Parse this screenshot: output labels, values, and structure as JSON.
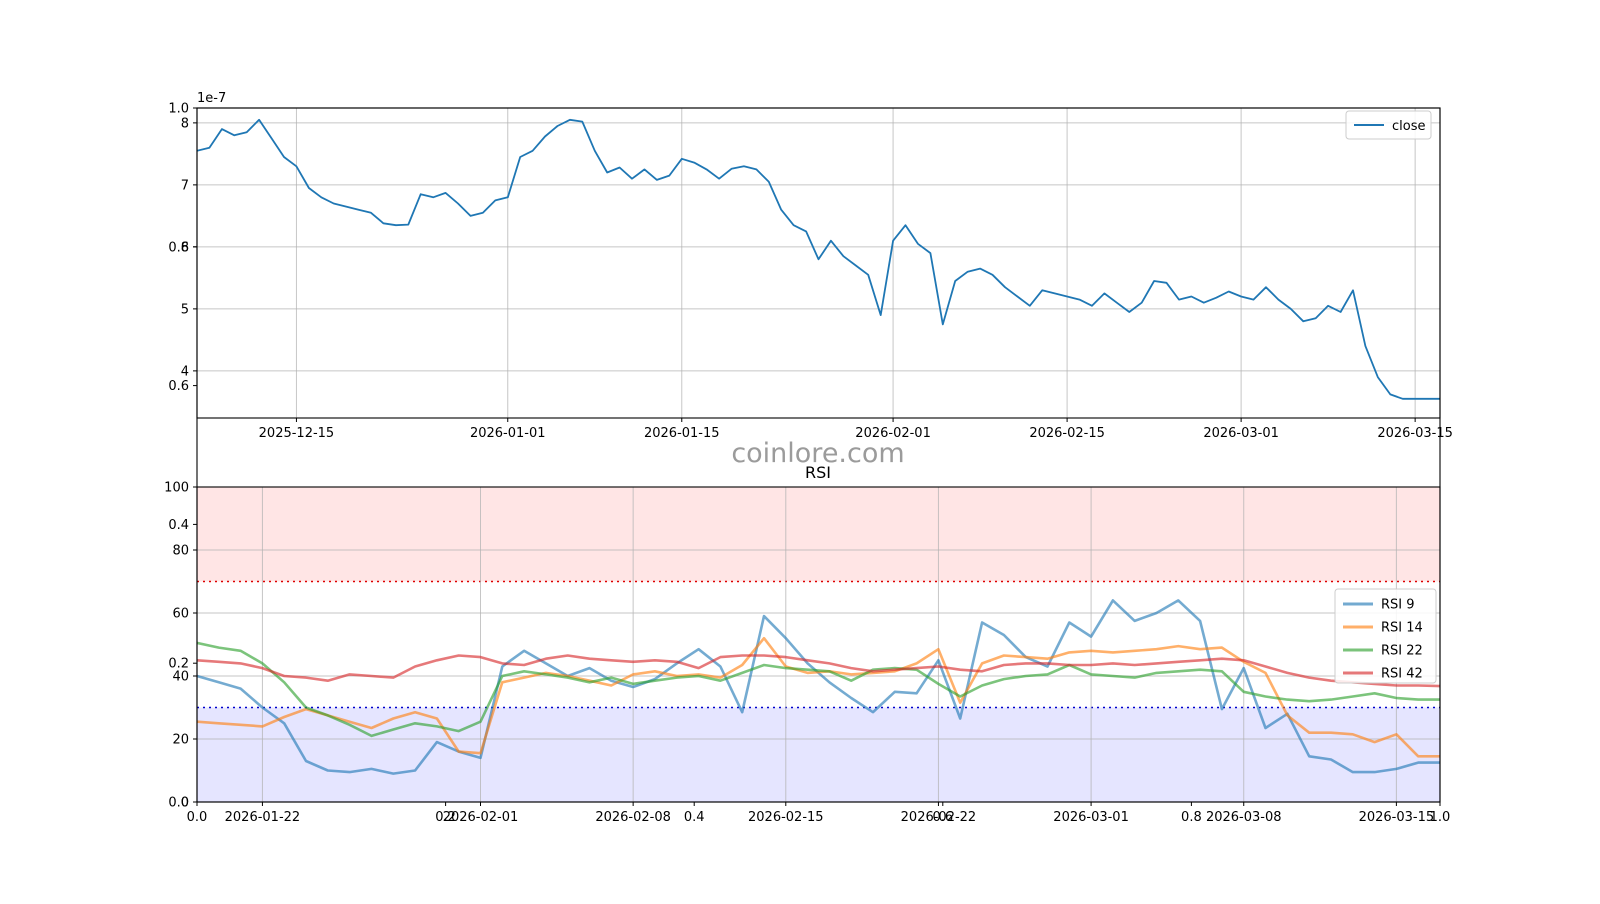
{
  "watermark": "coinlore.com",
  "colors": {
    "close": "#1f77b4",
    "rsi9": "#1f77b4",
    "rsi14": "#ff7f0e",
    "rsi22": "#2ca02c",
    "rsi42": "#d62728",
    "overbought_band": "rgba(255,0,0,0.10)",
    "oversold_band": "rgba(0,0,255,0.10)",
    "overbought_line": "#dd0000",
    "oversold_line": "#0000cc",
    "grid": "#b3b3b3",
    "spine": "#000000"
  },
  "overlay_axis": {
    "x_tick_labels": [
      "0.0",
      "0.2",
      "0.4",
      "0.6",
      "0.8",
      "1.0"
    ],
    "y_tick_labels": [
      "0.0",
      "0.2",
      "0.4",
      "0.6",
      "0.8",
      "1.0"
    ],
    "fractions": [
      0,
      0.2,
      0.4,
      0.6,
      0.8,
      1.0
    ]
  },
  "chart_data": [
    {
      "type": "line",
      "name": "close-price",
      "title": "",
      "offset_text": "1e-7",
      "legend": [
        "close"
      ],
      "legend_loc": "upper right",
      "grid": true,
      "ylim": [
        3.24,
        8.24
      ],
      "y_ticks": [
        4,
        5,
        6,
        7,
        8
      ],
      "y_tick_labels": [
        "4",
        "5",
        "6",
        "7",
        "8"
      ],
      "xlim": [
        "2025-12-07",
        "2026-03-17"
      ],
      "x_ticks": [
        "2025-12-15",
        "2026-01-01",
        "2026-01-15",
        "2026-02-01",
        "2026-02-15",
        "2026-03-01",
        "2026-03-15"
      ],
      "x_tick_labels": [
        "2025-12-15",
        "2026-01-01",
        "2026-01-15",
        "2026-02-01",
        "2026-02-15",
        "2026-03-01",
        "2026-03-15"
      ],
      "dates_start": "2025-12-07",
      "series": [
        {
          "name": "close",
          "values": [
            7.55,
            7.6,
            7.9,
            7.8,
            7.85,
            8.05,
            7.75,
            7.45,
            7.3,
            6.95,
            6.8,
            6.7,
            6.65,
            6.6,
            6.55,
            6.38,
            6.35,
            6.36,
            6.85,
            6.8,
            6.87,
            6.7,
            6.5,
            6.55,
            6.75,
            6.8,
            7.45,
            7.55,
            7.78,
            7.95,
            8.05,
            8.02,
            7.55,
            7.2,
            7.28,
            7.1,
            7.25,
            7.08,
            7.15,
            7.42,
            7.36,
            7.25,
            7.1,
            7.26,
            7.3,
            7.25,
            7.05,
            6.6,
            6.35,
            6.25,
            5.8,
            6.1,
            5.85,
            5.7,
            5.55,
            4.9,
            6.1,
            6.35,
            6.05,
            5.9,
            4.75,
            5.45,
            5.6,
            5.65,
            5.55,
            5.35,
            5.2,
            5.05,
            5.3,
            5.25,
            5.2,
            5.15,
            5.05,
            5.25,
            5.1,
            4.95,
            5.1,
            5.45,
            5.42,
            5.15,
            5.2,
            5.1,
            5.18,
            5.28,
            5.2,
            5.15,
            5.35,
            5.15,
            5.0,
            4.8,
            4.85,
            5.05,
            4.95,
            5.3,
            4.4,
            3.9,
            3.62,
            3.55,
            3.55,
            3.55,
            3.55
          ]
        }
      ]
    },
    {
      "type": "line",
      "name": "rsi",
      "title": "RSI",
      "legend": [
        "RSI 9",
        "RSI 14",
        "RSI 22",
        "RSI 42"
      ],
      "legend_loc": "right",
      "grid": true,
      "ylim": [
        0,
        100
      ],
      "y_ticks": [
        0,
        20,
        40,
        60,
        80,
        100
      ],
      "y_tick_labels": [
        "0",
        "20",
        "40",
        "60",
        "80",
        "100"
      ],
      "overbought_level": 70,
      "oversold_level": 30,
      "overbought_band": [
        70,
        100
      ],
      "oversold_band": [
        0,
        30
      ],
      "xlim": [
        "2026-01-19",
        "2026-03-17"
      ],
      "x_ticks": [
        "2026-01-22",
        "2026-02-01",
        "2026-02-08",
        "2026-02-15",
        "2026-02-22",
        "2026-03-01",
        "2026-03-08",
        "2026-03-15"
      ],
      "x_tick_labels": [
        "2026-01-22",
        "2026-02-01",
        "2026-02-08",
        "2026-02-15",
        "2026-02-22",
        "2026-03-01",
        "2026-03-08",
        "2026-03-15"
      ],
      "dates_start": "2026-01-19",
      "series": [
        {
          "name": "RSI 9",
          "color_key": "rsi9",
          "values": [
            40,
            38,
            36,
            30,
            25,
            13,
            10,
            9.5,
            10.5,
            9,
            10,
            19,
            16,
            14,
            43,
            48,
            44,
            40,
            42.5,
            38.5,
            36.5,
            39,
            44,
            48.5,
            43,
            28.5,
            59,
            52,
            44,
            38,
            33,
            28.5,
            35,
            34.5,
            45,
            26.5,
            57,
            53,
            46,
            43,
            57,
            52.5,
            64,
            57.5,
            60,
            64,
            57.5,
            29.5,
            42.5,
            23.5,
            28,
            14.5,
            13.5,
            9.5,
            9.5,
            10.5,
            12.5,
            12.5
          ]
        },
        {
          "name": "RSI 14",
          "color_key": "rsi14",
          "values": [
            25.5,
            25,
            24.5,
            24,
            27,
            29.5,
            27.5,
            25.5,
            23.5,
            26.5,
            28.5,
            26.5,
            16,
            15.5,
            38,
            39.5,
            41,
            40,
            38.5,
            37,
            40.5,
            41.5,
            40,
            40.5,
            39.5,
            43.5,
            52,
            43,
            41,
            41.5,
            40.5,
            41,
            41.5,
            44,
            48.5,
            31.5,
            44,
            46.5,
            46,
            45.5,
            47.5,
            48,
            47.5,
            48,
            48.5,
            49.5,
            48.5,
            49,
            44.5,
            41,
            27.5,
            22,
            22,
            21.5,
            19,
            21.5,
            14.5,
            14.5
          ]
        },
        {
          "name": "RSI 22",
          "color_key": "rsi22",
          "values": [
            50.5,
            49,
            48,
            44,
            38,
            30,
            27.5,
            24.5,
            21,
            23,
            25,
            24,
            22.5,
            25.5,
            40,
            41.5,
            40.5,
            39.5,
            38,
            39.5,
            37.5,
            38.5,
            39.5,
            40,
            38.5,
            41,
            43.5,
            42.5,
            42,
            41.5,
            38.5,
            42,
            42.5,
            42,
            37.5,
            33.5,
            37,
            39,
            40,
            40.5,
            43.5,
            40.5,
            40,
            39.5,
            41,
            41.5,
            42,
            41.5,
            35,
            33.5,
            32.5,
            32,
            32.5,
            33.5,
            34.5,
            33,
            32.5,
            32.5
          ]
        },
        {
          "name": "RSI 42",
          "color_key": "rsi42",
          "values": [
            45,
            44.5,
            44,
            42.5,
            40,
            39.5,
            38.5,
            40.5,
            40,
            39.5,
            43,
            45,
            46.5,
            46,
            44,
            43.5,
            45.5,
            46.5,
            45.5,
            45,
            44.5,
            45,
            44.5,
            42.5,
            46,
            46.5,
            46.5,
            46,
            45,
            44,
            42.5,
            41.5,
            42,
            42.5,
            43,
            42,
            41.5,
            43.5,
            44,
            44,
            43.5,
            43.5,
            44,
            43.5,
            44,
            44.5,
            45,
            45.5,
            45,
            43,
            41,
            39.5,
            38.5,
            38,
            37.5,
            37,
            37,
            36.8
          ]
        }
      ]
    }
  ]
}
